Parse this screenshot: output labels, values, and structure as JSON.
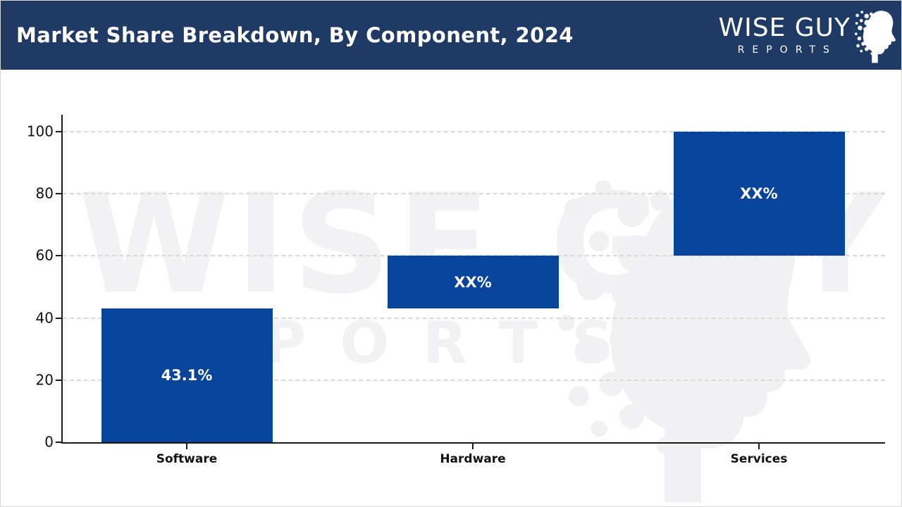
{
  "header": {
    "title": "Market Share Breakdown, By Component, 2024",
    "bg_color": "#203a66",
    "text_color": "#ffffff",
    "logo": {
      "line1": "WISE GUY",
      "line2": "REPORTS"
    }
  },
  "watermark": {
    "line1": "WISE GUY",
    "line2": "REPORTS",
    "color": "#f2f2f4"
  },
  "chart_data": {
    "type": "bar",
    "subtype": "waterfall",
    "title": "Market Share Breakdown, By Component, 2024",
    "categories": [
      "Software",
      "Hardware",
      "Services"
    ],
    "segments": [
      {
        "category": "Software",
        "start": 0,
        "end": 43.1,
        "label": "43.1%"
      },
      {
        "category": "Hardware",
        "start": 43.1,
        "end": 60,
        "label": "XX%"
      },
      {
        "category": "Services",
        "start": 60,
        "end": 100,
        "label": "XX%"
      }
    ],
    "ylim": [
      0,
      100
    ],
    "yticks": [
      0,
      20,
      40,
      60,
      80,
      100
    ],
    "xlabel": "",
    "ylabel": "",
    "grid": "horizontal dashed",
    "legend": "none",
    "colors": {
      "bar": "#07449a",
      "bar_label": "#ffffff",
      "grid": "#d9d9d9",
      "axis": "#1a1a1a",
      "tick_label": "#111111"
    }
  }
}
